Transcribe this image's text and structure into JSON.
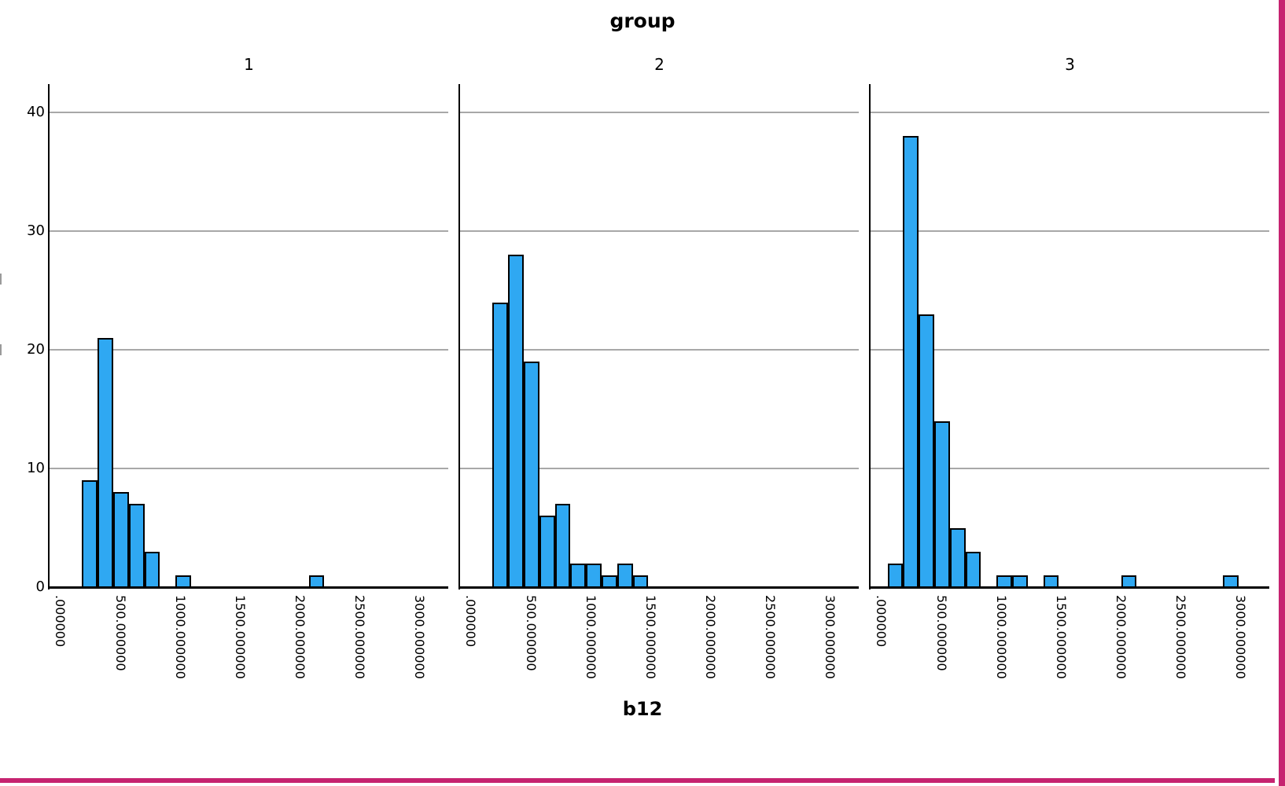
{
  "header": {
    "title": "group"
  },
  "footer": {
    "xlabel": "b12"
  },
  "chart_data": {
    "type": "bar",
    "subtype": "histogram-faceted",
    "facet_title": "group",
    "xlabel": "b12",
    "bin_width": 130,
    "x_ticks": [
      0,
      500,
      1000,
      1500,
      2000,
      2500,
      3000
    ],
    "x_tick_labels": [
      ".000000",
      "500.000000",
      "1000.000000",
      "1500.000000",
      "2000.000000",
      "2500.000000",
      "3000.000000"
    ],
    "y_ticks": [
      0,
      10,
      20,
      30,
      40
    ],
    "x_range": [
      -95,
      3235
    ],
    "ylim": [
      0,
      42.4
    ],
    "grid": true,
    "legend": "none",
    "bar_color": "#2FA8F2",
    "bar_border_color": "#000000",
    "gridline_color": "#a8a8a8",
    "axis_color": "#000000",
    "accent_border_color": "#C62370",
    "panels": [
      {
        "label": "1",
        "bars": [
          {
            "bin_start": 177,
            "count": 9
          },
          {
            "bin_start": 307,
            "count": 21
          },
          {
            "bin_start": 437,
            "count": 8
          },
          {
            "bin_start": 567,
            "count": 7
          },
          {
            "bin_start": 697,
            "count": 3
          },
          {
            "bin_start": 957,
            "count": 1
          },
          {
            "bin_start": 2070,
            "count": 1
          }
        ]
      },
      {
        "label": "2",
        "bars": [
          {
            "bin_start": 177,
            "count": 24
          },
          {
            "bin_start": 307,
            "count": 28
          },
          {
            "bin_start": 437,
            "count": 19
          },
          {
            "bin_start": 567,
            "count": 6
          },
          {
            "bin_start": 697,
            "count": 7
          },
          {
            "bin_start": 827,
            "count": 2
          },
          {
            "bin_start": 957,
            "count": 2
          },
          {
            "bin_start": 1087,
            "count": 1
          },
          {
            "bin_start": 1217,
            "count": 2
          },
          {
            "bin_start": 1347,
            "count": 1
          }
        ]
      },
      {
        "label": "3",
        "bars": [
          {
            "bin_start": 47,
            "count": 2
          },
          {
            "bin_start": 177,
            "count": 38
          },
          {
            "bin_start": 307,
            "count": 23
          },
          {
            "bin_start": 437,
            "count": 14
          },
          {
            "bin_start": 567,
            "count": 5
          },
          {
            "bin_start": 697,
            "count": 3
          },
          {
            "bin_start": 957,
            "count": 1
          },
          {
            "bin_start": 1087,
            "count": 1
          },
          {
            "bin_start": 1347,
            "count": 1
          },
          {
            "bin_start": 1997,
            "count": 1
          },
          {
            "bin_start": 2850,
            "count": 1
          }
        ]
      }
    ]
  }
}
